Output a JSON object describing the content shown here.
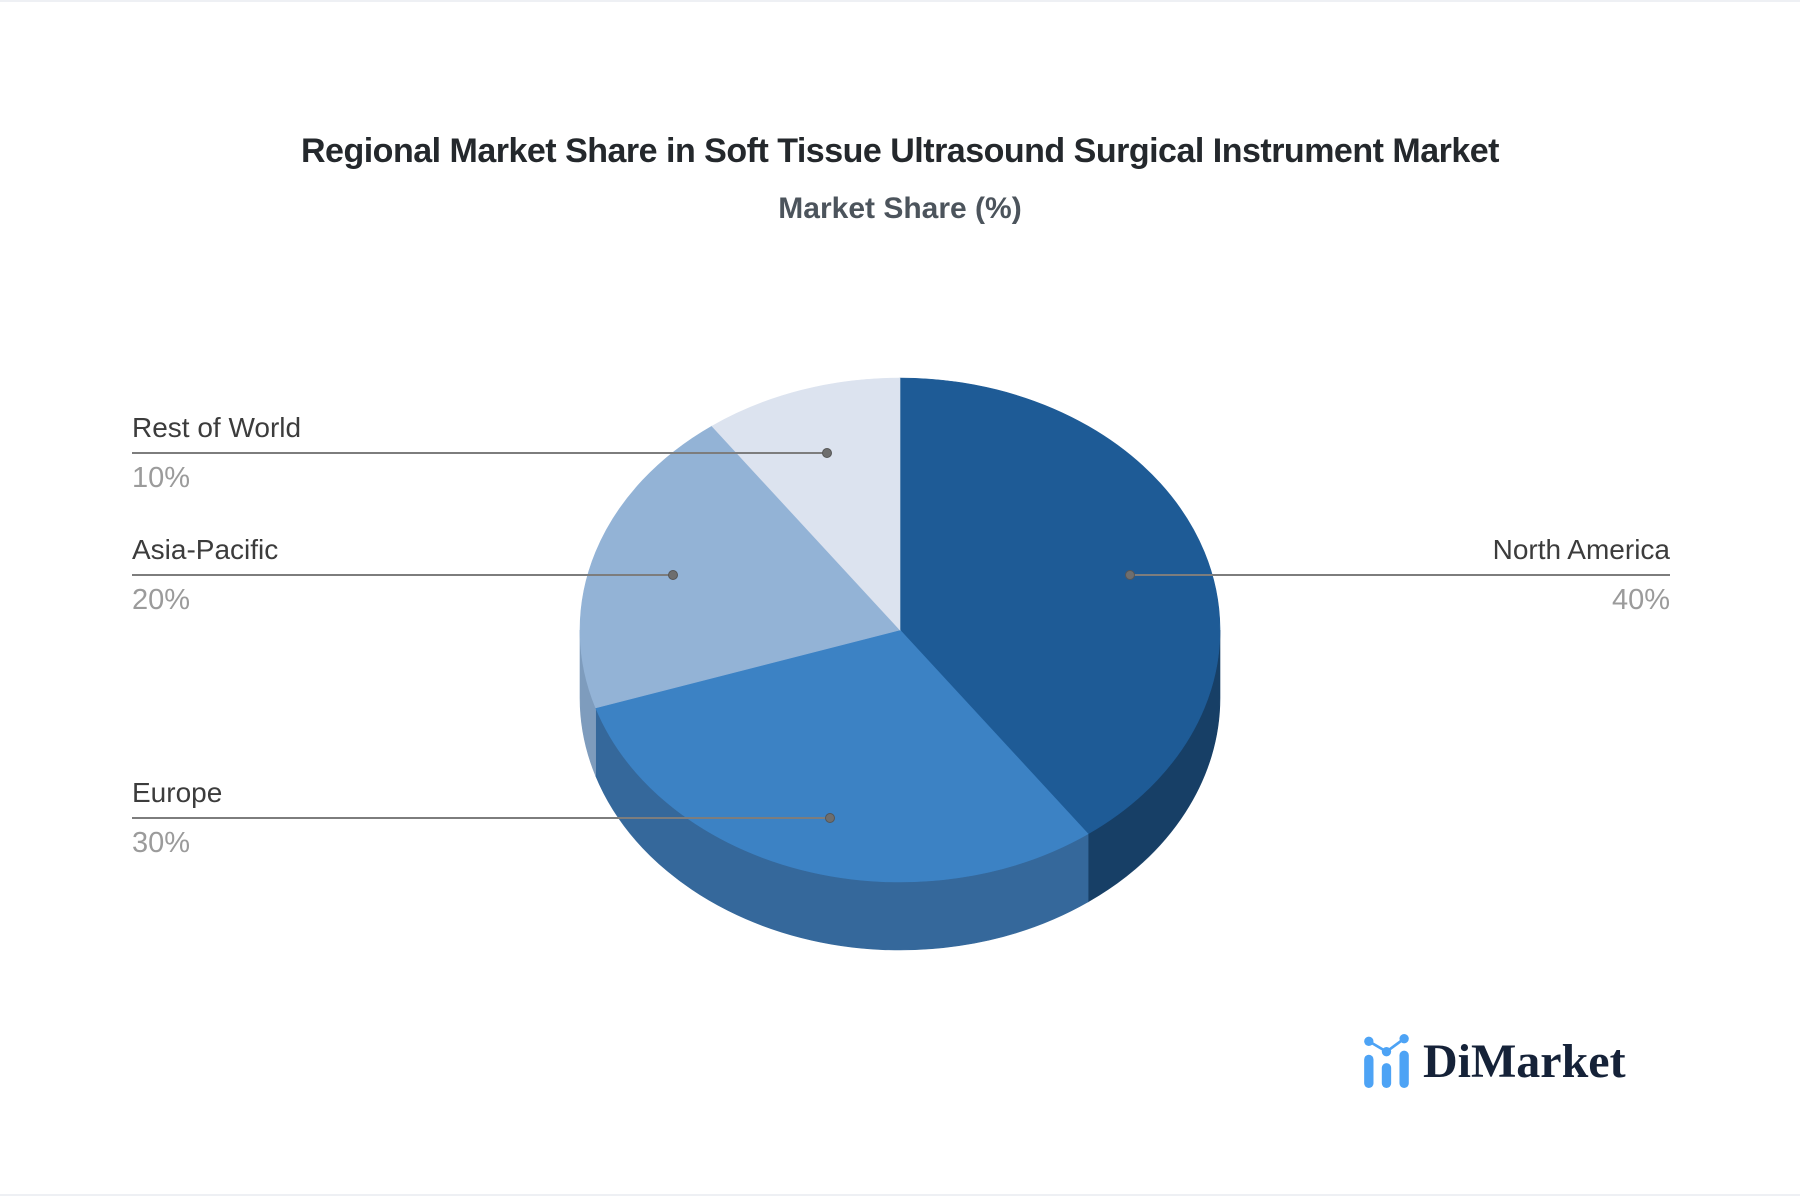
{
  "header": {
    "title": "Regional Market Share in Soft Tissue Ultrasound Surgical Instrument Market",
    "subtitle": "Market Share (%)"
  },
  "chart_data": {
    "type": "pie",
    "style": "3d-pie",
    "title": "Regional Market Share in Soft Tissue Ultrasound Surgical Instrument Market",
    "subtitle": "Market Share (%)",
    "unit": "%",
    "direction": "clockwise",
    "start_angle_deg": 0,
    "legend_position": "none",
    "label_style": "callouts-with-leader-lines",
    "slices": [
      {
        "name": "North America",
        "value": 40,
        "pct_label": "40%",
        "color": "#1E5B96",
        "depth_color": "#173F66"
      },
      {
        "name": "Europe",
        "value": 30,
        "pct_label": "30%",
        "color": "#3C82C4",
        "depth_color": "#35689B"
      },
      {
        "name": "Asia-Pacific",
        "value": 20,
        "pct_label": "20%",
        "color": "#93B3D6",
        "depth_color": "#7E9CBD"
      },
      {
        "name": "Rest of World",
        "value": 10,
        "pct_label": "10%",
        "color": "#DCE3EF",
        "depth_color": "#C3CDDD"
      }
    ]
  },
  "logo": {
    "text": "DiMarket",
    "icon": "bar-chart-logo-icon",
    "text_color": "#152238",
    "icon_color": "#4DA3F5"
  },
  "colors": {
    "background": "#FFFFFF",
    "title_text": "#24282C",
    "subtitle_text": "#4C545C",
    "label_text": "#3C3C3C",
    "pct_text": "#9B9B9B",
    "leader_line": "#7D7D7D"
  }
}
